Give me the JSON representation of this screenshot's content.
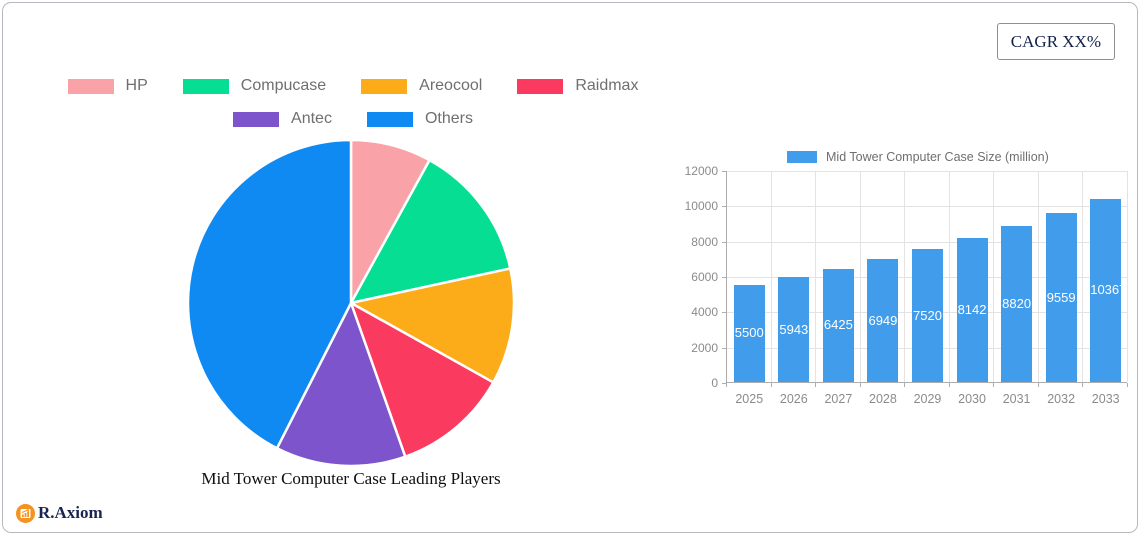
{
  "header": {
    "cagr_label": "CAGR XX%"
  },
  "logo": {
    "text": "R.Axiom",
    "circle_color": "#f6921e",
    "text_color": "#1b2450"
  },
  "chart_data": [
    {
      "type": "pie",
      "title": "Mid Tower Computer Case Leading Players",
      "legend_position": "top",
      "legend_rows": [
        4,
        2
      ],
      "labels": [
        "HP",
        "Compucase",
        "Areocool",
        "Raidmax",
        "Antec",
        "Others"
      ],
      "values": [
        8,
        13.6,
        11.5,
        11.5,
        12.9,
        42.5
      ],
      "colors": [
        "#f9a3a8",
        "#06de94",
        "#fbac18",
        "#fa3b5f",
        "#7d54cb",
        "#0e8af2"
      ],
      "start_angle_deg": 0,
      "direction": "clockwise",
      "slice_border_color": "#ffffff"
    },
    {
      "type": "bar",
      "legend_label": "Mid Tower Computer Case Size (million)",
      "categories": [
        "2025",
        "2026",
        "2027",
        "2028",
        "2029",
        "2030",
        "2031",
        "2032",
        "2033"
      ],
      "values": [
        5500,
        5943,
        6425,
        6949,
        7520,
        8142,
        8820,
        9559,
        10367
      ],
      "bar_color": "#419cec",
      "value_label_color": "#ffffff",
      "ylim": [
        0,
        12000
      ],
      "ytick_step": 2000,
      "grid": true,
      "legend_position": "top"
    }
  ]
}
